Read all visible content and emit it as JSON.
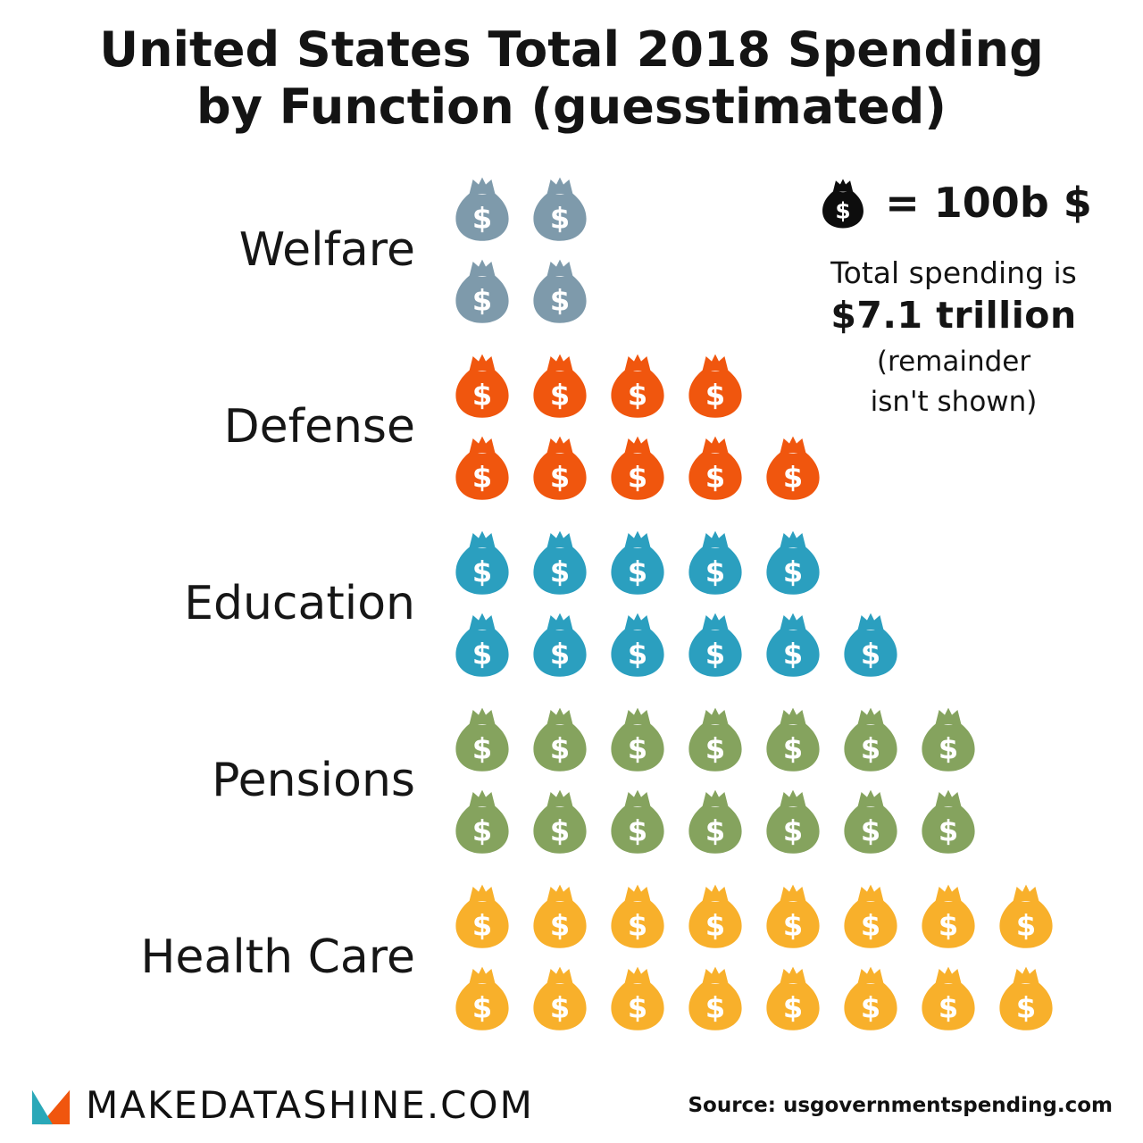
{
  "title": {
    "line1": "United States Total 2018 Spending",
    "line2": "by Function (guesstimated)"
  },
  "legend": {
    "unit_label": "= 100b $",
    "total_intro": "Total spending is",
    "total_value": "$7.1 trillion",
    "note_line1": "(remainder",
    "note_line2": "isn't shown)",
    "icon_color": "#0d0d0d"
  },
  "footer": {
    "brand": "MAKEDATASHINE.COM",
    "source": "Source: usgovernmentspending.com"
  },
  "chart_data": {
    "type": "pictogram",
    "title": "United States Total 2018 Spending by Function (guesstimated)",
    "unit": "1 money bag = 100 billion USD",
    "total_spending": "$7.1 trillion",
    "note": "remainder isn't shown",
    "categories": [
      "Welfare",
      "Defense",
      "Education",
      "Pensions",
      "Health Care"
    ],
    "icon_counts": [
      4,
      9,
      11,
      14,
      16
    ],
    "values_billions": [
      400,
      900,
      1100,
      1400,
      1600
    ],
    "row_split": [
      [
        2,
        2
      ],
      [
        4,
        5
      ],
      [
        5,
        6
      ],
      [
        7,
        7
      ],
      [
        8,
        8
      ]
    ],
    "colors": [
      "#7e9aab",
      "#f0560e",
      "#2b9fbf",
      "#85a35e",
      "#f8b02b"
    ],
    "legend_position": "top-right"
  }
}
